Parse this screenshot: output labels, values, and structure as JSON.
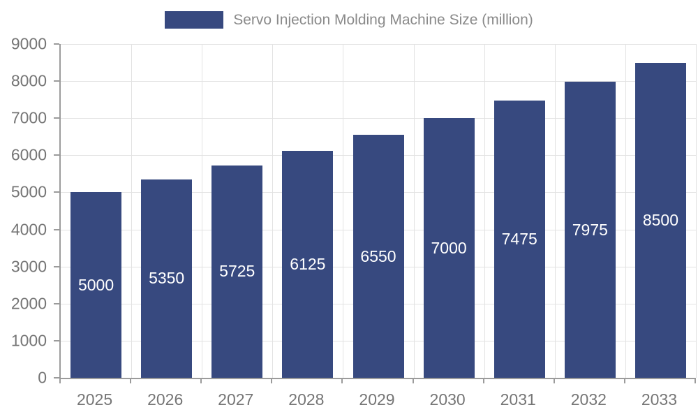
{
  "legend": {
    "label": "Servo Injection Molding Machine Size (million)"
  },
  "chart_data": {
    "type": "bar",
    "title": "Servo Injection Molding Machine Size (million)",
    "categories": [
      "2025",
      "2026",
      "2027",
      "2028",
      "2029",
      "2030",
      "2031",
      "2032",
      "2033"
    ],
    "values": [
      5000,
      5350,
      5725,
      6125,
      6550,
      7000,
      7475,
      7975,
      8500
    ],
    "xlabel": "",
    "ylabel": "",
    "ylim": [
      0,
      9000
    ],
    "ytick_step": 1000,
    "yticks": [
      0,
      1000,
      2000,
      3000,
      4000,
      5000,
      6000,
      7000,
      8000,
      9000
    ],
    "grid": true,
    "legend_position": "top",
    "value_labels": "inside-center",
    "colors": {
      "bar": "#37497f",
      "bar_label": "#ffffff",
      "axis_text": "#757575",
      "legend_text": "#8a8a8a",
      "grid": "#e2e2e2",
      "axis_line": "#9b9b9b",
      "background": "#ffffff"
    }
  }
}
